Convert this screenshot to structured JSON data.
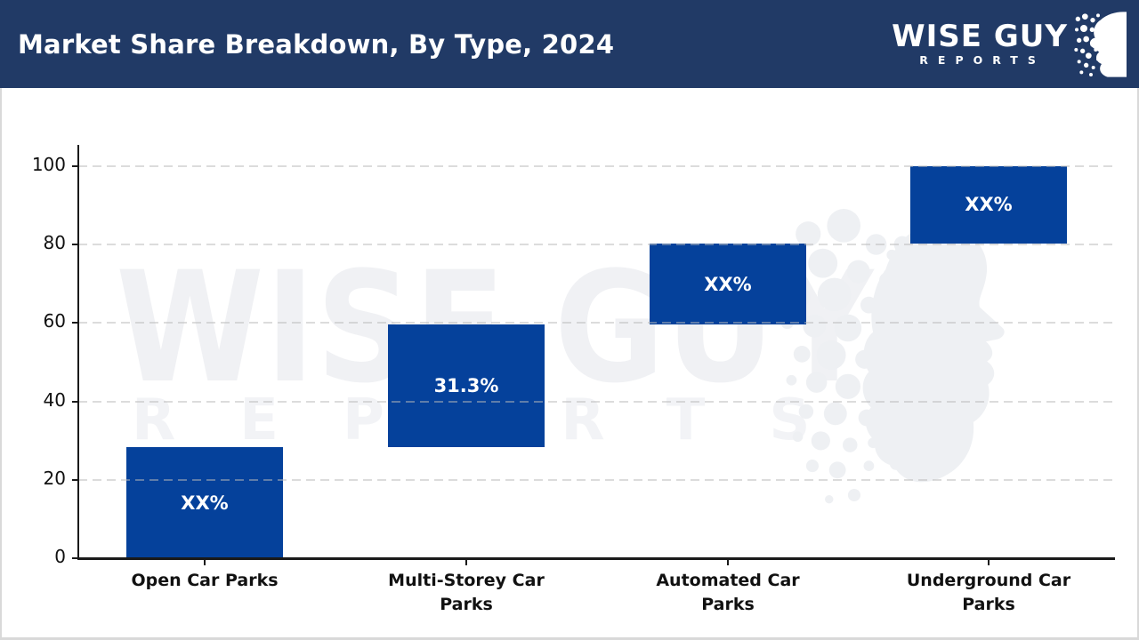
{
  "header": {
    "title": "Market Share Breakdown, By Type, 2024",
    "bg_color": "#213A66",
    "brand": {
      "line1": "WISE GUY",
      "line2": "REPORTS"
    }
  },
  "watermark": {
    "line1": "WISE GUY",
    "line2": "REPORTS"
  },
  "chart_data": {
    "type": "bar",
    "subtype": "waterfall-floating-bars",
    "title": "Market Share Breakdown, By Type, 2024",
    "categories": [
      "Open Car Parks",
      "Multi-Storey Car\nParks",
      "Automated Car\nParks",
      "Underground Car\nParks"
    ],
    "segments": [
      {
        "category": "Open Car Parks",
        "start": 0,
        "end": 28.3,
        "label": "XX%"
      },
      {
        "category": "Multi-Storey Car Parks",
        "start": 28.3,
        "end": 59.6,
        "label": "31.3%",
        "value": 31.3
      },
      {
        "category": "Automated Car Parks",
        "start": 59.6,
        "end": 80.3,
        "label": "XX%"
      },
      {
        "category": "Underground Car Parks",
        "start": 80.3,
        "end": 100,
        "label": "XX%"
      }
    ],
    "y_ticks": [
      0,
      20,
      40,
      60,
      80,
      100
    ],
    "ylim": [
      0,
      105
    ],
    "xlabel": "",
    "ylabel": "",
    "grid": true,
    "grid_style": "dashed",
    "legend": "none",
    "bar_color": "#05419B",
    "bar_label_color": "#FFFFFF",
    "axis_color": "#1A1A1A"
  }
}
